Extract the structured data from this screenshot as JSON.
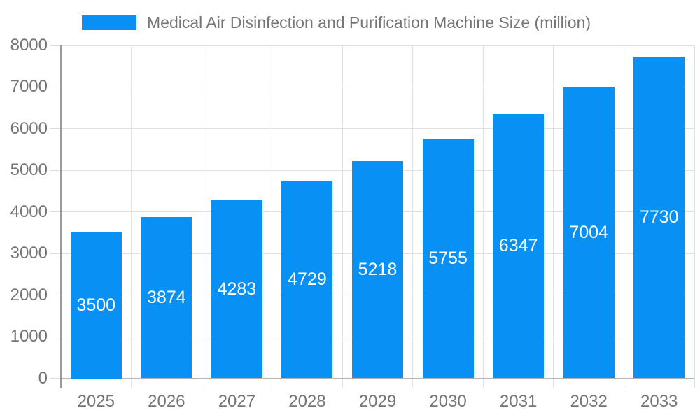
{
  "legend": {
    "label": "Medical Air Disinfection and Purification Machine Size (million)"
  },
  "chart_data": {
    "type": "bar",
    "title": "Medical Air Disinfection and Purification Machine Size (million)",
    "categories": [
      "2025",
      "2026",
      "2027",
      "2028",
      "2029",
      "2030",
      "2031",
      "2032",
      "2033"
    ],
    "values": [
      3500,
      3874,
      4283,
      4729,
      5218,
      5755,
      6347,
      7004,
      7730
    ],
    "xlabel": "",
    "ylabel": "",
    "ylim": [
      0,
      8000
    ],
    "ytick_step": 1000,
    "ytick_labels": [
      "0",
      "1000",
      "2000",
      "3000",
      "4000",
      "5000",
      "6000",
      "7000",
      "8000"
    ],
    "grid": true,
    "legend_position": "top",
    "value_labels": "inside-center",
    "colors": {
      "bar": "#0890f5",
      "axis_text": "#757575",
      "value_text": "#ffffff",
      "gridline": "#e0e0e0",
      "x_axis_line": "#b5b5b5",
      "y_axis_line": "#9a9a9a"
    }
  }
}
